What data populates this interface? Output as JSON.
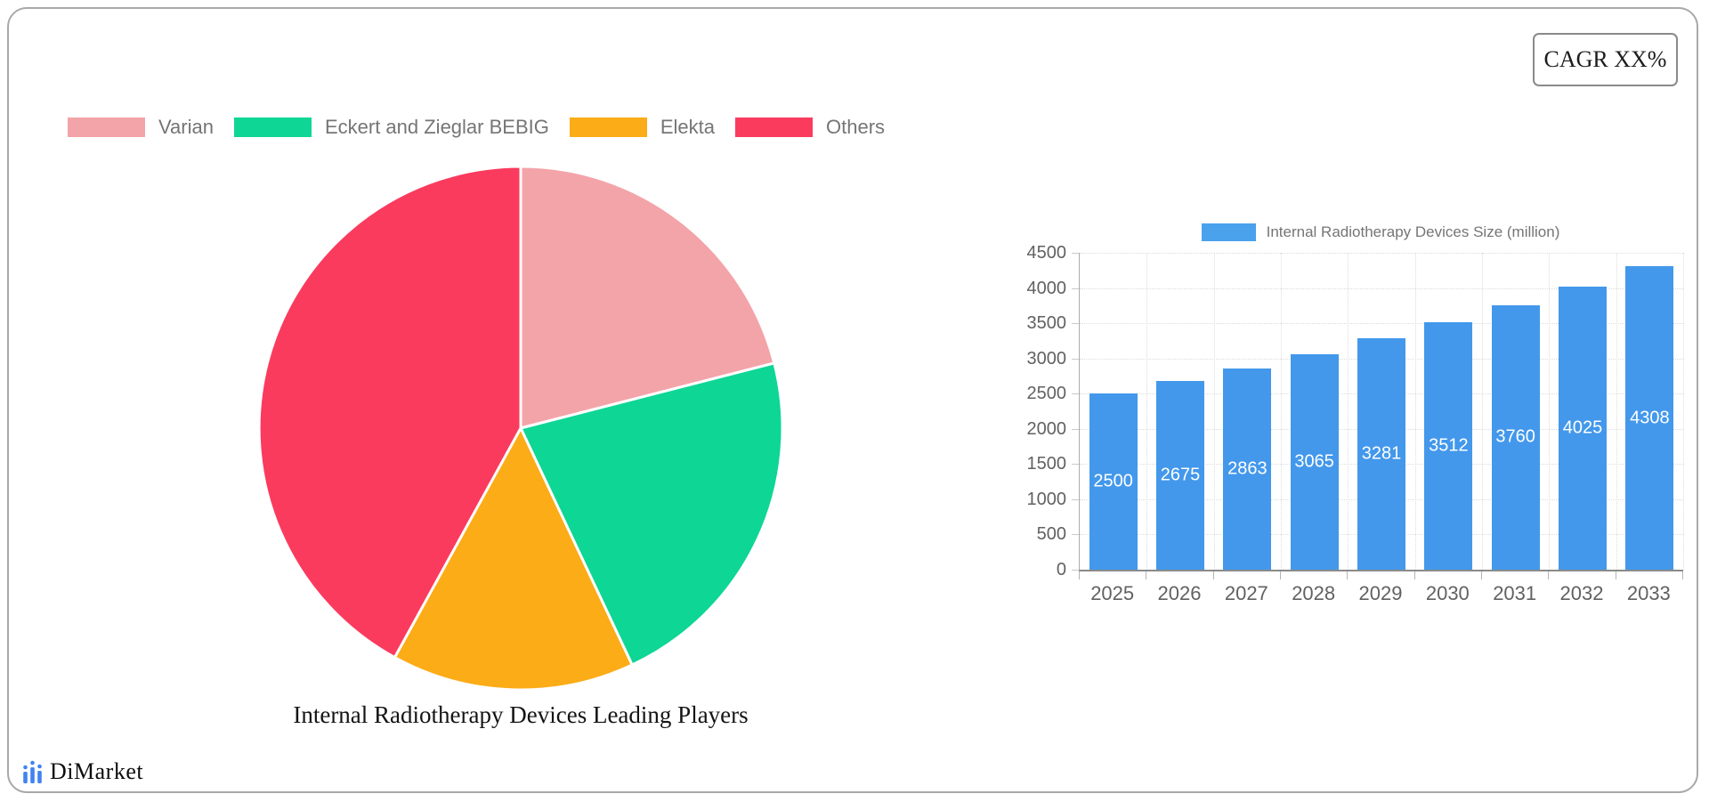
{
  "cagr_badge": {
    "label": "CAGR XX%"
  },
  "brand": {
    "name": "DiMarket",
    "icon": "bar-chart-icon",
    "icon_color": "#4183F2"
  },
  "colors": {
    "card_border": "#A9A9A9",
    "bar": "#4398EB",
    "bar_legend_swatch": "#4AA2EC",
    "grid": "#DCDCDC",
    "axis": "#ADADAD",
    "baseline": "#8A8A8A",
    "tick_text": "#616161",
    "legend_text": "#757575",
    "value_label": "#FFFFFF"
  },
  "chart_data": [
    {
      "type": "pie",
      "title": "Internal Radiotherapy Devices Leading Players",
      "labels": [
        "Varian",
        "Eckert and Zieglar BEBIG",
        "Elekta",
        "Others"
      ],
      "values_percent": [
        21,
        22,
        15,
        42
      ],
      "colors": [
        "#F3A4A9",
        "#0ED695",
        "#FBAC17",
        "#FA3B5E"
      ],
      "start_angle_deg": 0,
      "direction": "clockwise",
      "legend_position": "top",
      "slice_border_color": "#FFFFFF",
      "slice_border_width": 3
    },
    {
      "type": "bar",
      "categories": [
        "2025",
        "2026",
        "2027",
        "2028",
        "2029",
        "2030",
        "2031",
        "2032",
        "2033"
      ],
      "series": [
        {
          "name": "Internal Radiotherapy Devices Size (million)",
          "values": [
            2500,
            2675,
            2863,
            3065,
            3281,
            3512,
            3760,
            4025,
            4308
          ]
        }
      ],
      "ylim": [
        0,
        4500
      ],
      "ytick_step": 500,
      "yticks": [
        0,
        500,
        1000,
        1500,
        2000,
        2500,
        3000,
        3500,
        4000,
        4500
      ],
      "grid": true,
      "legend_position": "top",
      "value_labels": "inside-center",
      "xlabel": "",
      "ylabel": ""
    }
  ]
}
